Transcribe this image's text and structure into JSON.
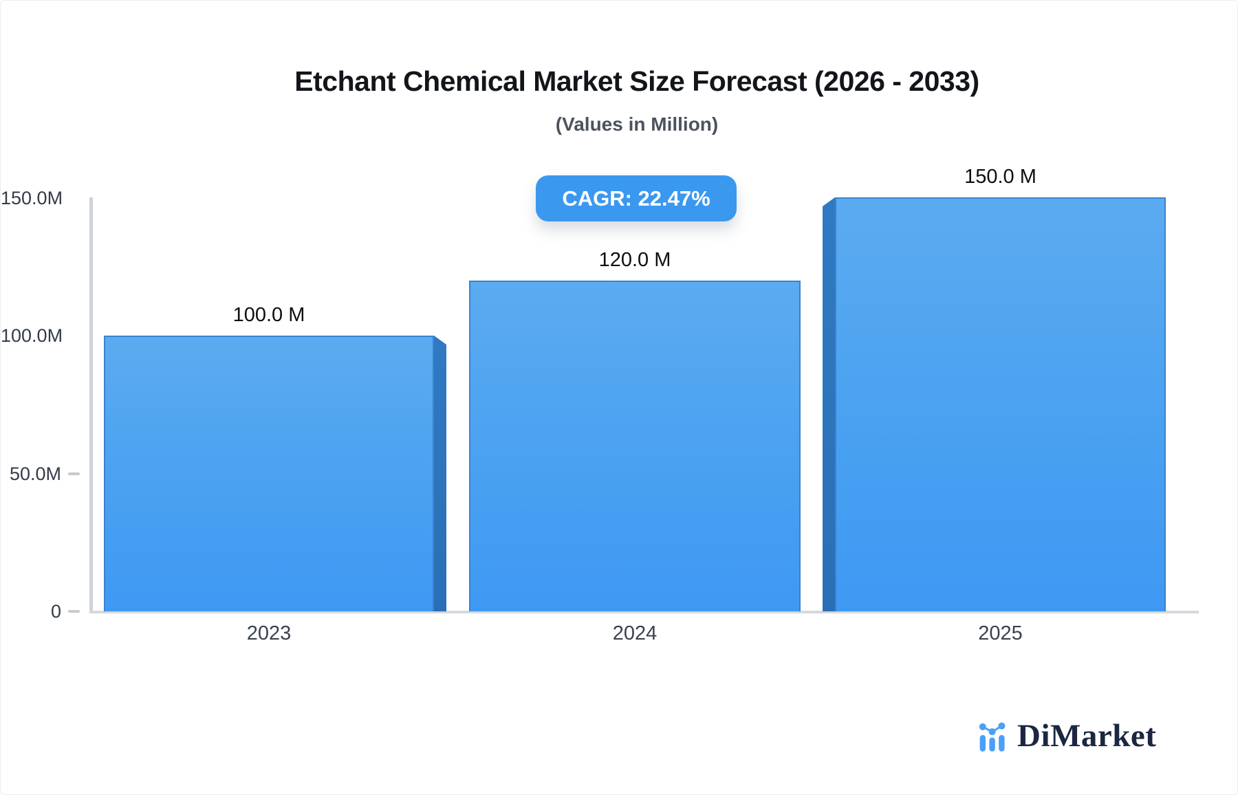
{
  "header": {
    "title": "Etchant Chemical Market Size Forecast (2026 - 2033)",
    "subtitle": "(Values in Million)",
    "cagr_label": "CAGR: 22.47%"
  },
  "chart_data": {
    "type": "bar",
    "title": "Etchant Chemical Market Size Forecast (2026 - 2033)",
    "subtitle": "(Values in Million)",
    "unit": "Million",
    "categories": [
      "2023",
      "2024",
      "2025"
    ],
    "values": [
      100.0,
      120.0,
      150.0
    ],
    "bar_labels": [
      "100.0 M",
      "120.0 M",
      "150.0 M"
    ],
    "annotations": [
      "CAGR: 22.47%"
    ],
    "y_axis": {
      "range": [
        0,
        150
      ],
      "ticks": [
        {
          "label": "150.0M",
          "value": 150,
          "dash": false
        },
        {
          "label": "100.0M",
          "value": 100,
          "dash": false
        },
        {
          "label": "50.0M",
          "value": 50,
          "dash": true
        },
        {
          "label": "0",
          "value": 0,
          "dash": true
        }
      ]
    },
    "grid": false,
    "legend": false
  },
  "footer": {
    "logo_text": "DiMarket"
  },
  "colors": {
    "accent_blue": "#3b98ef",
    "bar_top": "#5babf0",
    "bar_bottom": "#3f99f3",
    "bar_border": "#3b82cf",
    "bar_side": "#2b72b8",
    "axis_gray": "#d0d4db",
    "text_dark": "#12151a",
    "text_gray": "#4c535e",
    "logo_navy": "#1b2742",
    "logo_blue": "#4aa0f6"
  }
}
